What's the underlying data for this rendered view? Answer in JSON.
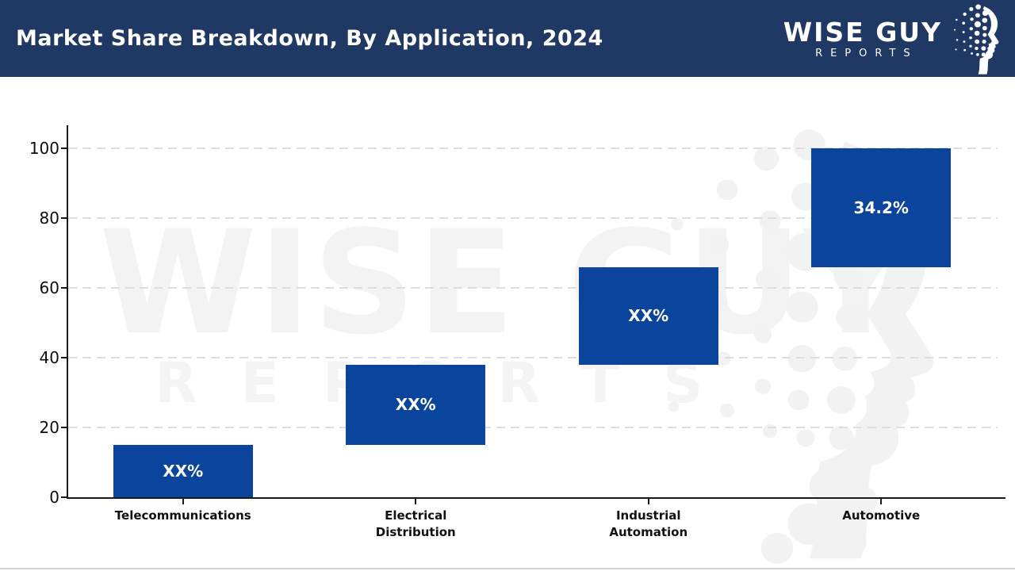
{
  "header": {
    "title": "Market Share Breakdown, By Application, 2024",
    "logo": {
      "line1": "WISE GUY",
      "line2": "REPORTS"
    }
  },
  "watermark": {
    "line1": "WISE GUY",
    "line2": "REPORTS"
  },
  "chart_data": {
    "type": "bar",
    "subtype": "floating-waterfall-segments",
    "title": "Market Share Breakdown, By Application, 2024",
    "categories": [
      "Telecommunications",
      "Electrical\nDistribution",
      "Industrial\nAutomation",
      "Automotive"
    ],
    "bars": [
      {
        "category": "Telecommunications",
        "start": 0,
        "end": 15,
        "label": "XX%"
      },
      {
        "category": "Electrical Distribution",
        "start": 15,
        "end": 38,
        "label": "XX%"
      },
      {
        "category": "Industrial Automation",
        "start": 38,
        "end": 66,
        "label": "XX%"
      },
      {
        "category": "Automotive",
        "start": 66,
        "end": 100,
        "label": "34.2%"
      }
    ],
    "xlabel": "",
    "ylabel": "",
    "ylim": [
      0,
      105
    ],
    "yticks": [
      0,
      20,
      40,
      60,
      80,
      100
    ],
    "grid": "horizontal-dashed",
    "legend": "none",
    "colors": {
      "bar": "#0b449c",
      "header_bg": "#1f3864",
      "grid": "#dedede",
      "axis": "#1a1a1a",
      "watermark": "#f3f3f3",
      "bar_label": "#ffffff"
    }
  }
}
